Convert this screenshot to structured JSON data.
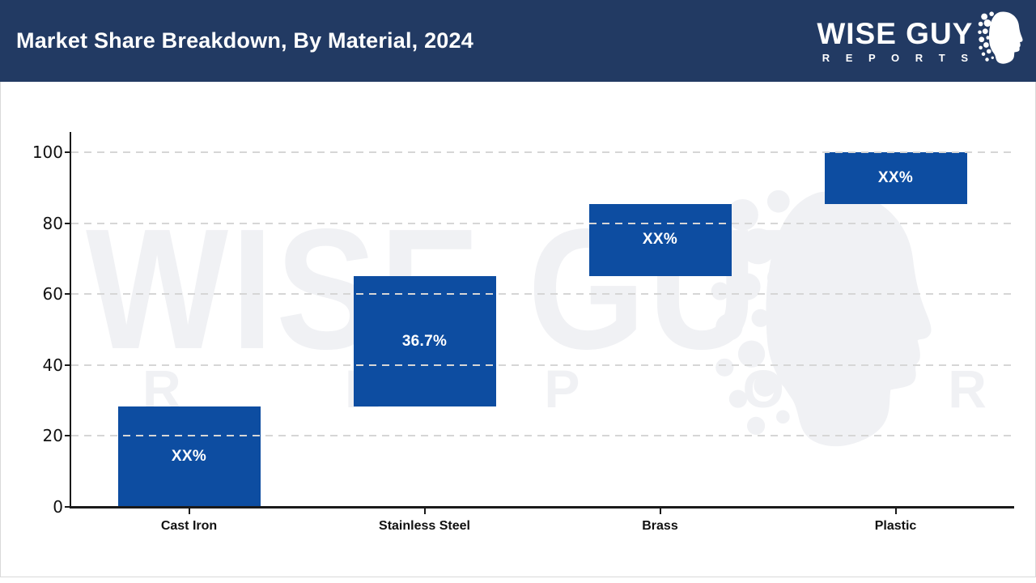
{
  "header": {
    "title": "Market Share Breakdown, By Material, 2024",
    "logo": {
      "wordmark": "WISE GUY",
      "subtext": "R E P O R T S"
    }
  },
  "watermark": {
    "line1": "WISE GUY",
    "line2": "R E P O R T S"
  },
  "colors": {
    "header_bg": "#223a63",
    "bar_fill": "#0d4da1",
    "grid_line": "#d6d6d6",
    "axis_color": "#1a1a1a",
    "bar_label_color": "#ffffff",
    "watermark_color": "#f0f1f4",
    "border_color": "#d9d9d9"
  },
  "chart_data": {
    "type": "bar",
    "subtype": "waterfall-floating-segments",
    "title": "Market Share Breakdown, By Material, 2024",
    "categories": [
      "Cast Iron",
      "Stainless Steel",
      "Brass",
      "Plastic"
    ],
    "bars": [
      {
        "category": "Cast Iron",
        "start": 0,
        "end": 28.3,
        "value_label": "XX%",
        "approx_value": 28.3
      },
      {
        "category": "Stainless Steel",
        "start": 28.3,
        "end": 65,
        "value_label": "36.7%",
        "approx_value": 36.7
      },
      {
        "category": "Brass",
        "start": 65,
        "end": 85.5,
        "value_label": "XX%",
        "approx_value": 20.5
      },
      {
        "category": "Plastic",
        "start": 85.5,
        "end": 100,
        "value_label": "XX%",
        "approx_value": 14.5
      }
    ],
    "xlabel": "",
    "ylabel": "",
    "ylim": [
      0,
      100
    ],
    "yticks": [
      0,
      20,
      40,
      60,
      80,
      100
    ],
    "grid": "horizontal-dashed",
    "legend": null
  }
}
